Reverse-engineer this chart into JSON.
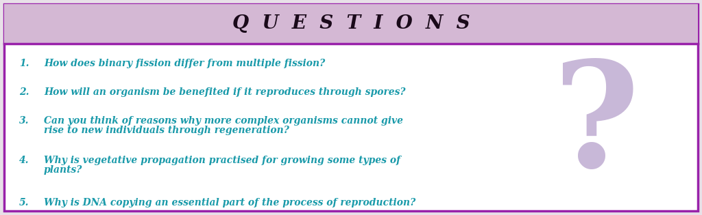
{
  "title": "Q  U  E  S  T  I  O  N  S",
  "title_bg": "#d4b8d4",
  "title_color": "#1a0a1a",
  "title_fontsize": 20,
  "body_bg": "#ffffff",
  "border_color": "#9922aa",
  "border_width": 2.5,
  "question_color": "#1a9aaa",
  "number_color": "#1a9aaa",
  "numbers": [
    "1.",
    "2.",
    "3.",
    "4.",
    "5."
  ],
  "questions_line1": [
    "How does binary fission differ from multiple fission?",
    "How will an organism be benefited if it reproduces through spores?",
    "Can you think of reasons why more complex organisms cannot give",
    "Why is vegetative propagation practised for growing some types of",
    "Why is DNA copying an essential part of the process of reproduction?"
  ],
  "questions_line2": [
    "",
    "",
    "rise to new individuals through regeneration?",
    "plants?",
    ""
  ],
  "question_fontsize": 10,
  "watermark_color": "#c8b8d8",
  "watermark_text": "?",
  "watermark_fontsize": 155,
  "fig_width": 10.24,
  "fig_height": 3.15,
  "dpi": 100
}
